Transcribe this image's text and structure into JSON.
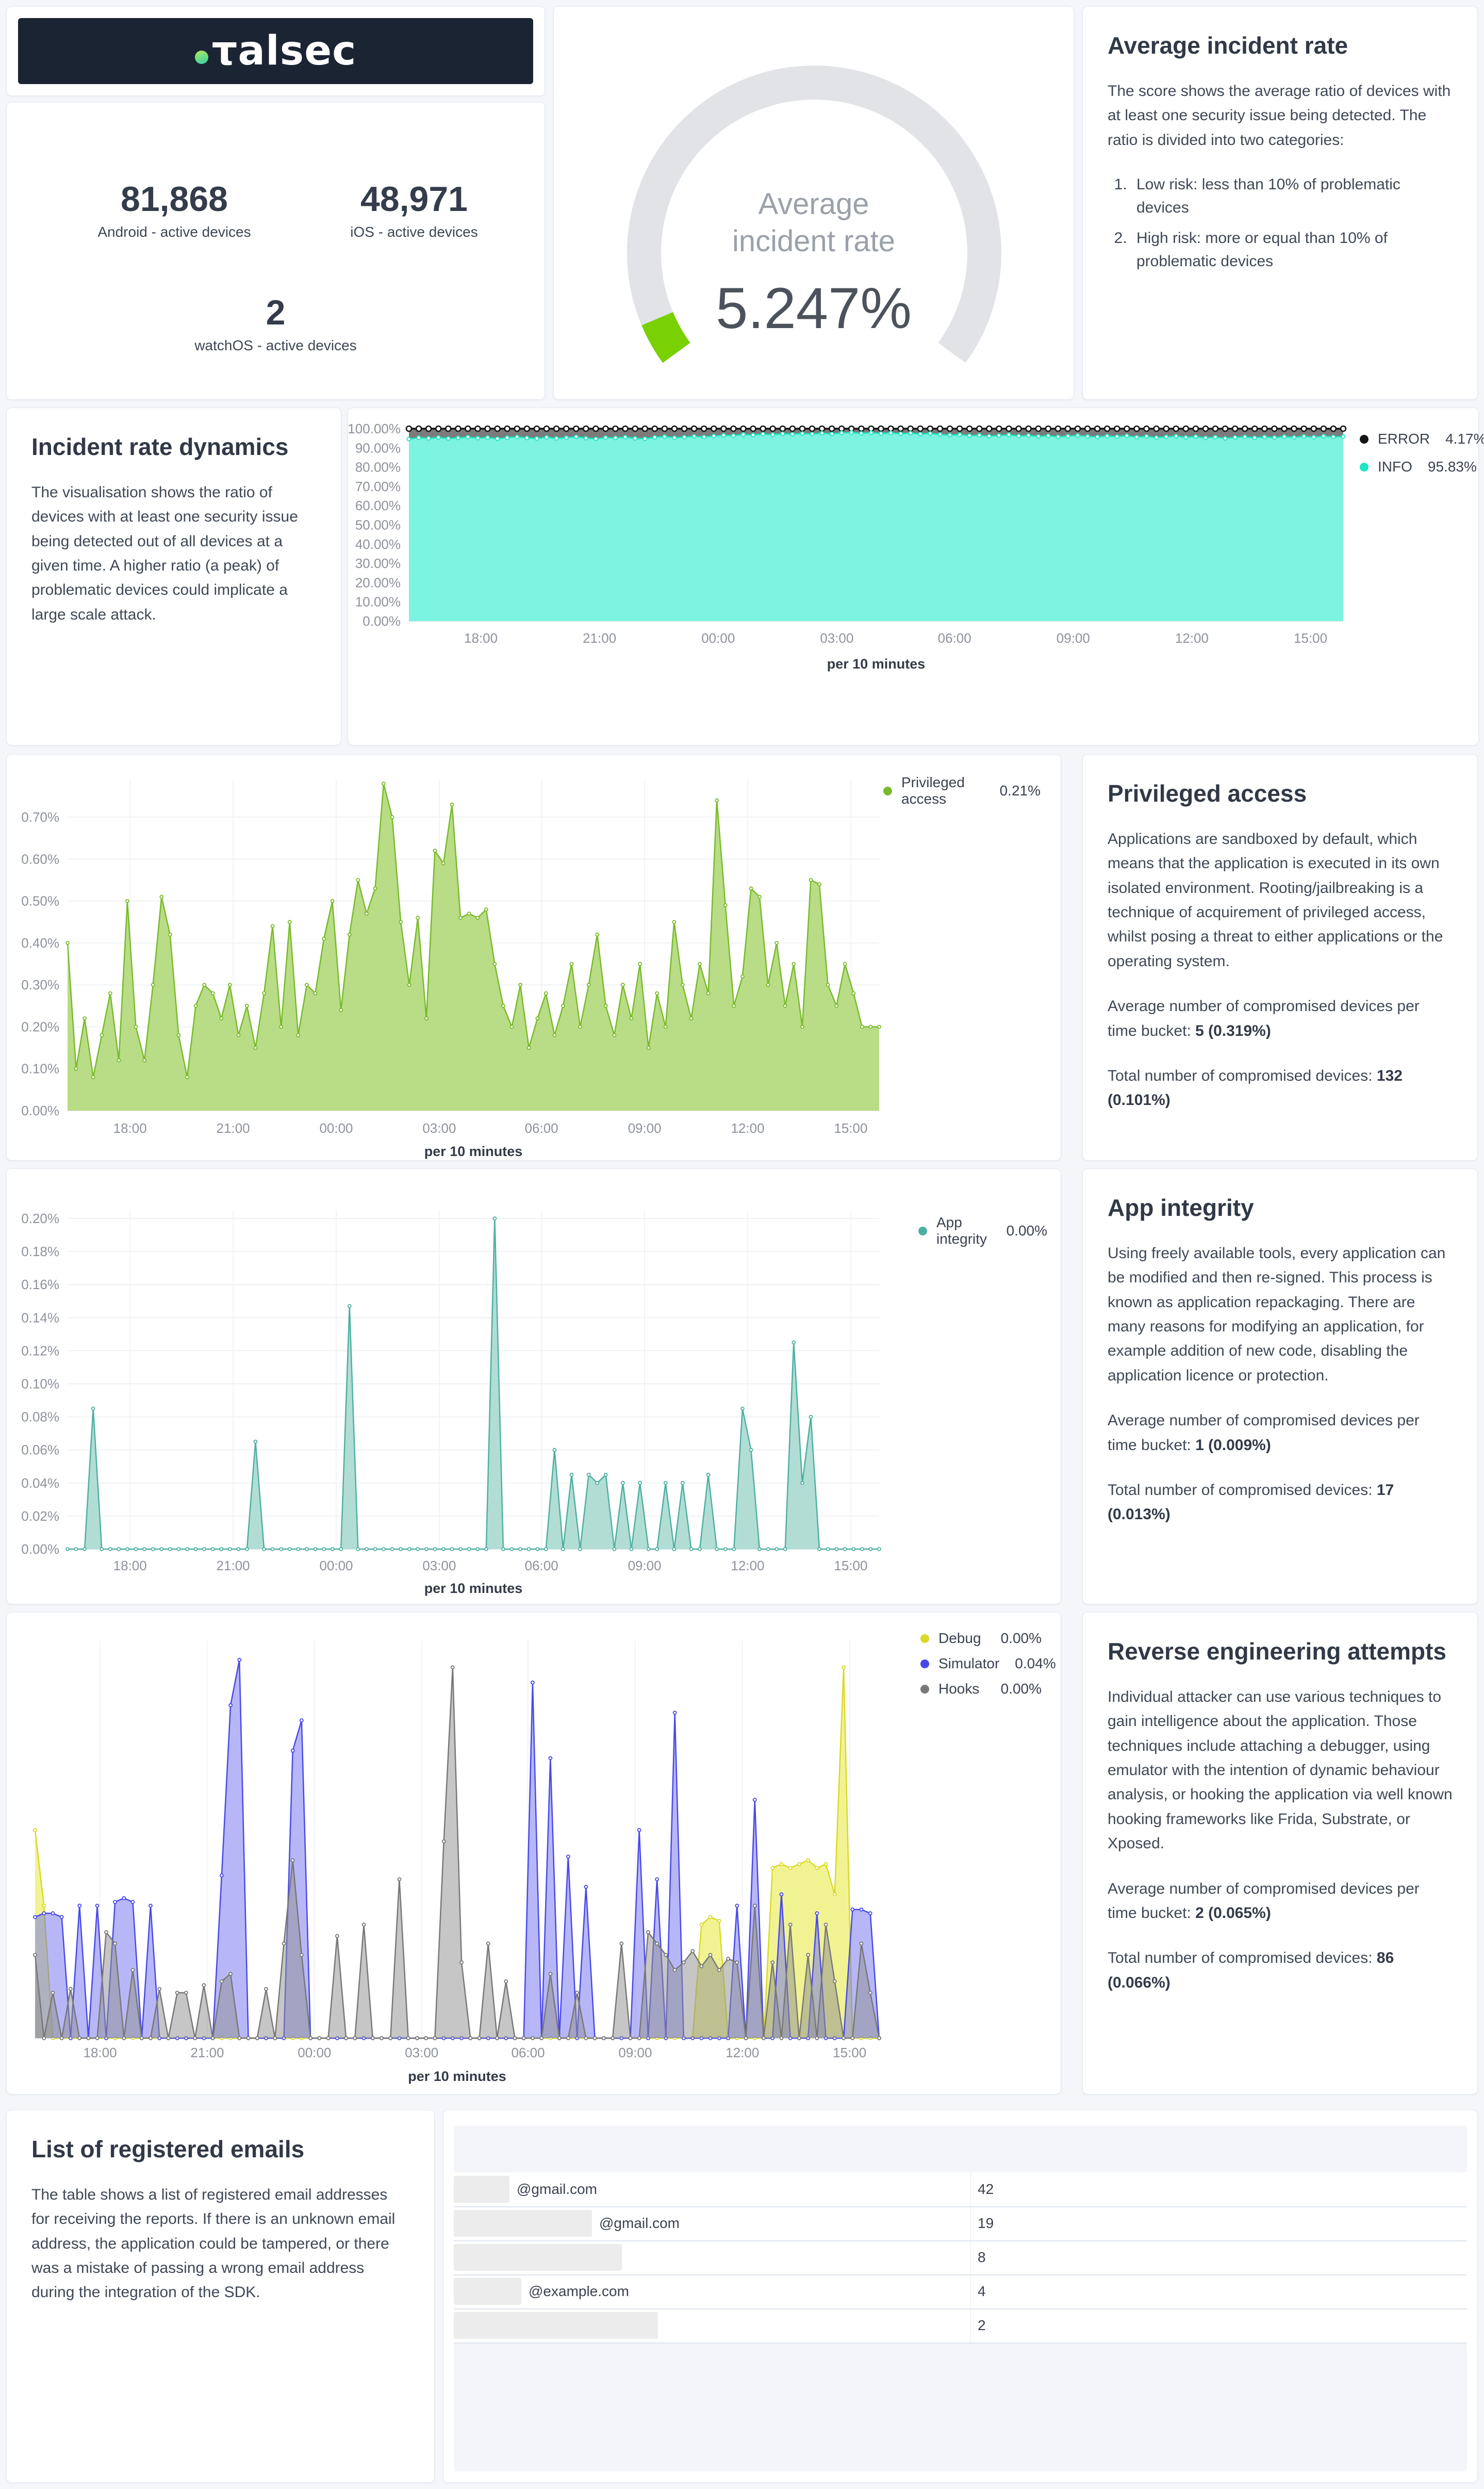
{
  "brand": {
    "logo_text": "τalsec",
    "logo_dot_color": "#7fe13c",
    "logo_bg": "#1b2433"
  },
  "stats": {
    "android_value": "81,868",
    "android_label": "Android - active devices",
    "ios_value": "48,971",
    "ios_label": "iOS - active devices",
    "watch_value": "2",
    "watch_label": "watchOS - active devices"
  },
  "gauge": {
    "title_line1": "Average",
    "title_line2": "incident rate",
    "value": "5.247%",
    "percent": 5.247,
    "track_color": "#e1e3e7",
    "fill_color": "#79d104"
  },
  "avg_incident": {
    "title": "Average incident rate",
    "body": "The score shows the average ratio of devices with at least one security issue being detected. The ratio is divided into two categories:",
    "items": [
      "Low risk: less than 10% of problematic devices",
      "High risk: more or equal than 10% of problematic devices"
    ]
  },
  "dynamics": {
    "title": "Incident rate dynamics",
    "body": "The visualisation shows the ratio of devices with at least one security issue being detected out of all devices at a given time. A higher ratio (a peak) of problematic devices could implicate a large scale attack."
  },
  "privileged": {
    "title": "Privileged access",
    "body": "Applications are sandboxed by default, which means that the application is executed in its own isolated environment. Rooting/jailbreaking is a technique of acquirement of privileged access, whilst posing a threat to either applications or the operating system.",
    "avg_prefix": "Average number of compromised devices per time bucket: ",
    "avg_value": "5 (0.319%)",
    "total_prefix": "Total number of compromised devices: ",
    "total_value": "132 (0.101%)"
  },
  "app_integrity": {
    "title": "App integrity",
    "body": "Using freely available tools, every application can be modified and then re-signed. This process is known as application repackaging. There are many reasons for modifying an application, for example addition of new code, disabling the application licence or protection.",
    "avg_prefix": "Average number of compromised devices per time bucket: ",
    "avg_value": "1 (0.009%)",
    "total_prefix": "Total number of compromised devices: ",
    "total_value": "17 (0.013%)"
  },
  "reverse": {
    "title": "Reverse engineering attempts",
    "body": "Individual attacker can use various techniques to gain intelligence about the application. Those techniques include attaching a debugger, using emulator with the intention of dynamic behaviour analysis, or hooking the application via well known hooking frameworks like Frida, Substrate, or Xposed.",
    "avg_prefix": "Average number of compromised devices per time bucket: ",
    "avg_value": "2 (0.065%)",
    "total_prefix": "Total number of compromised devices: ",
    "total_value": "86 (0.066%)"
  },
  "emails": {
    "title": "List of registered emails",
    "body": "The table shows a list of registered email addresses for receiving the reports. If there is an unknown email address, the application could be tampered, or there was a mistake of passing a wrong email address during the integration of the SDK.",
    "rows": [
      {
        "visible": "@gmail.com",
        "count": "42",
        "redact_w": 108
      },
      {
        "visible": "@gmail.com",
        "count": "19",
        "redact_w": 268
      },
      {
        "visible": "",
        "count": "8",
        "redact_w": 326
      },
      {
        "visible": "@example.com",
        "count": "4",
        "redact_w": 131
      },
      {
        "visible": "",
        "count": "2",
        "redact_w": 396
      }
    ]
  },
  "chart_data": [
    {
      "type": "area",
      "title": "Incident rate dynamics",
      "xlabel": "per 10 minutes",
      "ylim": [
        0,
        100
      ],
      "x_ticks": [
        {
          "label": "18:00",
          "f": 0.077
        },
        {
          "label": "21:00",
          "f": 0.204
        },
        {
          "label": "00:00",
          "f": 0.331
        },
        {
          "label": "03:00",
          "f": 0.458
        },
        {
          "label": "06:00",
          "f": 0.584
        },
        {
          "label": "09:00",
          "f": 0.711
        },
        {
          "label": "12:00",
          "f": 0.838
        },
        {
          "label": "15:00",
          "f": 0.965
        }
      ],
      "y_ticks": [
        {
          "label": "100.00%",
          "v": 100
        },
        {
          "label": "90.00%",
          "v": 90
        },
        {
          "label": "80.00%",
          "v": 80
        },
        {
          "label": "70.00%",
          "v": 70
        },
        {
          "label": "60.00%",
          "v": 60
        },
        {
          "label": "50.00%",
          "v": 50
        },
        {
          "label": "40.00%",
          "v": 40
        },
        {
          "label": "30.00%",
          "v": 30
        },
        {
          "label": "20.00%",
          "v": 20
        },
        {
          "label": "10.00%",
          "v": 10
        },
        {
          "label": "0.00%",
          "v": 0
        }
      ],
      "series": [
        {
          "name": "ERROR",
          "legend_value": "4.17%",
          "color": "#151515",
          "fill": "#7b7b7b",
          "band_to_top": true
        },
        {
          "name": "INFO",
          "legend_value": "95.83%",
          "color": "#1fe4c2",
          "fill": "#7df3e1",
          "values": [
            94.6,
            95.3,
            95.0,
            95.4,
            94.9,
            95.2,
            95.6,
            95.1,
            95.4,
            94.8,
            95.3,
            95.7,
            95.2,
            94.9,
            95.5,
            95.0,
            95.3,
            95.8,
            95.1,
            94.7,
            95.4,
            95.2,
            95.6,
            95.0,
            94.8,
            95.5,
            95.9,
            95.3,
            95.6,
            96.0,
            95.7,
            96.2,
            96.6,
            96.4,
            97.0,
            96.7,
            97.2,
            96.9,
            97.4,
            97.1,
            97.5,
            97.2,
            97.7,
            97.3,
            97.8,
            98.0,
            97.6,
            97.9,
            97.5,
            97.8,
            97.4,
            97.7,
            97.2,
            97.5,
            97.0,
            96.7,
            96.9,
            96.4,
            96.6,
            96.1,
            96.4,
            96.8,
            96.2,
            96.5,
            96.0,
            96.3,
            95.8,
            96.1,
            96.5,
            96.0,
            95.7,
            96.2,
            95.9,
            96.3,
            95.6,
            96.0,
            95.4,
            95.8,
            96.1,
            95.5,
            95.9,
            95.2,
            95.6,
            95.0,
            95.5,
            95.8,
            95.3,
            95.7,
            95.4,
            95.9,
            95.5,
            96.0,
            95.6,
            96.1,
            95.7,
            95.9
          ]
        }
      ]
    },
    {
      "type": "area",
      "title": "Privileged access",
      "xlabel": "per 10 minutes",
      "ylim": [
        0,
        0.79
      ],
      "x_ticks": [
        {
          "label": "18:00",
          "f": 0.077
        },
        {
          "label": "21:00",
          "f": 0.204
        },
        {
          "label": "00:00",
          "f": 0.331
        },
        {
          "label": "03:00",
          "f": 0.458
        },
        {
          "label": "06:00",
          "f": 0.584
        },
        {
          "label": "09:00",
          "f": 0.711
        },
        {
          "label": "12:00",
          "f": 0.838
        },
        {
          "label": "15:00",
          "f": 0.965
        }
      ],
      "y_ticks": [
        {
          "label": "0.70%",
          "v": 0.7
        },
        {
          "label": "0.60%",
          "v": 0.6
        },
        {
          "label": "0.50%",
          "v": 0.5
        },
        {
          "label": "0.40%",
          "v": 0.4
        },
        {
          "label": "0.30%",
          "v": 0.3
        },
        {
          "label": "0.20%",
          "v": 0.2
        },
        {
          "label": "0.10%",
          "v": 0.1
        },
        {
          "label": "0.00%",
          "v": 0
        }
      ],
      "series": [
        {
          "name": "Privileged access",
          "legend_value": "0.21%",
          "color": "#78ba2a",
          "fill": "#b9dc86",
          "values": [
            0.4,
            0.1,
            0.22,
            0.08,
            0.18,
            0.28,
            0.12,
            0.5,
            0.2,
            0.12,
            0.3,
            0.51,
            0.42,
            0.18,
            0.08,
            0.25,
            0.3,
            0.28,
            0.22,
            0.3,
            0.18,
            0.25,
            0.15,
            0.28,
            0.44,
            0.2,
            0.45,
            0.18,
            0.3,
            0.28,
            0.41,
            0.5,
            0.24,
            0.42,
            0.55,
            0.47,
            0.53,
            0.78,
            0.7,
            0.45,
            0.3,
            0.46,
            0.22,
            0.62,
            0.59,
            0.73,
            0.46,
            0.47,
            0.46,
            0.48,
            0.35,
            0.25,
            0.2,
            0.3,
            0.15,
            0.22,
            0.28,
            0.18,
            0.25,
            0.35,
            0.2,
            0.3,
            0.42,
            0.25,
            0.18,
            0.3,
            0.22,
            0.35,
            0.15,
            0.28,
            0.2,
            0.45,
            0.3,
            0.22,
            0.35,
            0.28,
            0.74,
            0.49,
            0.25,
            0.32,
            0.53,
            0.51,
            0.3,
            0.4,
            0.25,
            0.35,
            0.2,
            0.55,
            0.54,
            0.3,
            0.25,
            0.35,
            0.28,
            0.2,
            0.2,
            0.2
          ]
        }
      ]
    },
    {
      "type": "area",
      "title": "App integrity",
      "xlabel": "per 10 minutes",
      "ylim": [
        0,
        0.205
      ],
      "x_ticks": [
        {
          "label": "18:00",
          "f": 0.077
        },
        {
          "label": "21:00",
          "f": 0.204
        },
        {
          "label": "00:00",
          "f": 0.331
        },
        {
          "label": "03:00",
          "f": 0.458
        },
        {
          "label": "06:00",
          "f": 0.584
        },
        {
          "label": "09:00",
          "f": 0.711
        },
        {
          "label": "12:00",
          "f": 0.838
        },
        {
          "label": "15:00",
          "f": 0.965
        }
      ],
      "y_ticks": [
        {
          "label": "0.20%",
          "v": 0.2
        },
        {
          "label": "0.18%",
          "v": 0.18
        },
        {
          "label": "0.16%",
          "v": 0.16
        },
        {
          "label": "0.14%",
          "v": 0.14
        },
        {
          "label": "0.12%",
          "v": 0.12
        },
        {
          "label": "0.10%",
          "v": 0.1
        },
        {
          "label": "0.08%",
          "v": 0.08
        },
        {
          "label": "0.06%",
          "v": 0.06
        },
        {
          "label": "0.04%",
          "v": 0.04
        },
        {
          "label": "0.02%",
          "v": 0.02
        },
        {
          "label": "0.00%",
          "v": 0
        }
      ],
      "series": [
        {
          "name": "App integrity",
          "legend_value": "0.00%",
          "color": "#4db0a0",
          "fill": "#b2ddd5",
          "values": [
            0,
            0,
            0,
            0.085,
            0,
            0,
            0,
            0,
            0,
            0,
            0,
            0,
            0,
            0,
            0,
            0,
            0,
            0,
            0,
            0,
            0,
            0,
            0.065,
            0,
            0,
            0,
            0,
            0,
            0,
            0,
            0,
            0,
            0,
            0.147,
            0,
            0,
            0,
            0,
            0,
            0,
            0,
            0,
            0,
            0,
            0,
            0,
            0,
            0,
            0,
            0,
            0.2,
            0,
            0,
            0,
            0,
            0,
            0,
            0.06,
            0,
            0.045,
            0,
            0.045,
            0.04,
            0.045,
            0,
            0.04,
            0,
            0.04,
            0,
            0,
            0.04,
            0,
            0.04,
            0,
            0,
            0.045,
            0,
            0,
            0,
            0.085,
            0.06,
            0,
            0,
            0,
            0,
            0.125,
            0.04,
            0.08,
            0,
            0,
            0,
            0,
            0,
            0,
            0,
            0
          ]
        }
      ]
    },
    {
      "type": "area",
      "title": "Reverse engineering attempts",
      "xlabel": "per 10 minutes",
      "ylim": [
        0,
        105
      ],
      "x_ticks": [
        {
          "label": "18:00",
          "f": 0.077
        },
        {
          "label": "21:00",
          "f": 0.204
        },
        {
          "label": "00:00",
          "f": 0.331
        },
        {
          "label": "03:00",
          "f": 0.458
        },
        {
          "label": "06:00",
          "f": 0.584
        },
        {
          "label": "09:00",
          "f": 0.711
        },
        {
          "label": "12:00",
          "f": 0.838
        },
        {
          "label": "15:00",
          "f": 0.965
        }
      ],
      "y_ticks": [],
      "series": [
        {
          "name": "Debug",
          "legend_value": "0.00%",
          "color": "#d8da25",
          "fill": "rgba(233,235,80,0.62)",
          "values": [
            55,
            35,
            0,
            0,
            0,
            0,
            0,
            0,
            0,
            0,
            0,
            0,
            0,
            0,
            0,
            0,
            0,
            0,
            0,
            0,
            0,
            0,
            0,
            0,
            0,
            0,
            0,
            0,
            0,
            0,
            0,
            0,
            0,
            0,
            0,
            0,
            0,
            0,
            0,
            0,
            0,
            0,
            0,
            0,
            0,
            0,
            0,
            0,
            0,
            0,
            0,
            0,
            0,
            0,
            0,
            0,
            0,
            0,
            0,
            0,
            0,
            0,
            0,
            0,
            0,
            0,
            0,
            0,
            0,
            0,
            0,
            0,
            0,
            0,
            0,
            30,
            32,
            31,
            0,
            0,
            0,
            0,
            0,
            45,
            46,
            45,
            46,
            47,
            45,
            46,
            38,
            98,
            0,
            0,
            0,
            0
          ]
        },
        {
          "name": "Simulator",
          "legend_value": "0.04%",
          "color": "#4848e8",
          "fill": "rgba(105,105,240,0.48)",
          "values": [
            32,
            33,
            33,
            32,
            0,
            35,
            0,
            35,
            0,
            36,
            37,
            36,
            0,
            35,
            0,
            0,
            0,
            0,
            0,
            0,
            0,
            43,
            88,
            100,
            0,
            0,
            0,
            0,
            0,
            76,
            84,
            0,
            0,
            0,
            0,
            0,
            0,
            0,
            0,
            0,
            0,
            0,
            0,
            0,
            0,
            0,
            0,
            0,
            0,
            0,
            0,
            0,
            0,
            0,
            0,
            0,
            94,
            0,
            74,
            0,
            48,
            0,
            40,
            0,
            0,
            0,
            0,
            0,
            55,
            0,
            42,
            0,
            86,
            0,
            0,
            0,
            0,
            0,
            0,
            35,
            0,
            63,
            0,
            0,
            38,
            0,
            0,
            0,
            33,
            0,
            0,
            0,
            34,
            34,
            33,
            0
          ]
        },
        {
          "name": "Hooks",
          "legend_value": "0.00%",
          "color": "#787878",
          "fill": "rgba(145,145,145,0.52)",
          "values": [
            22,
            0,
            12,
            0,
            13,
            0,
            0,
            0,
            28,
            25,
            0,
            18,
            0,
            0,
            13,
            0,
            12,
            12,
            0,
            14,
            0,
            15,
            17,
            0,
            0,
            0,
            13,
            0,
            25,
            47,
            22,
            0,
            0,
            0,
            27,
            0,
            0,
            30,
            0,
            0,
            0,
            42,
            0,
            0,
            0,
            0,
            52,
            98,
            20,
            0,
            0,
            25,
            0,
            15,
            0,
            0,
            0,
            0,
            17,
            0,
            0,
            12,
            0,
            0,
            0,
            0,
            25,
            0,
            0,
            28,
            25,
            22,
            18,
            20,
            23,
            19,
            22,
            18,
            21,
            20,
            0,
            35,
            0,
            20,
            0,
            30,
            0,
            22,
            0,
            30,
            15,
            0,
            0,
            25,
            12,
            0
          ]
        }
      ]
    }
  ]
}
